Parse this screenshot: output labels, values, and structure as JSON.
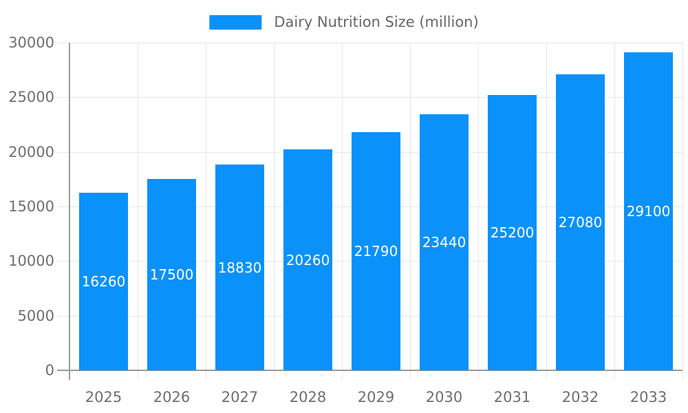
{
  "chart_data": {
    "type": "bar",
    "title": "",
    "legend": {
      "label": "Dairy Nutrition Size (million)",
      "position": "top-center"
    },
    "categories": [
      "2025",
      "2026",
      "2027",
      "2028",
      "2029",
      "2030",
      "2031",
      "2032",
      "2033"
    ],
    "series": [
      {
        "name": "Dairy Nutrition Size (million)",
        "values": [
          16260,
          17500,
          18830,
          20260,
          21790,
          23440,
          25200,
          27080,
          29100
        ]
      }
    ],
    "value_labels_position": "inside-center",
    "xlabel": "",
    "ylabel": "",
    "ylim": [
      0,
      30000
    ],
    "yticks": [
      0,
      5000,
      10000,
      15000,
      20000,
      25000,
      30000
    ],
    "grid": true,
    "colors": {
      "bar": "#0a91fa",
      "gridline": "#e6e6e6",
      "axis": "#9a9a9a",
      "tick_text": "#6e6e6e",
      "legend_text": "#666666",
      "value_label_text": "#ffffff",
      "background": "#ffffff"
    }
  }
}
